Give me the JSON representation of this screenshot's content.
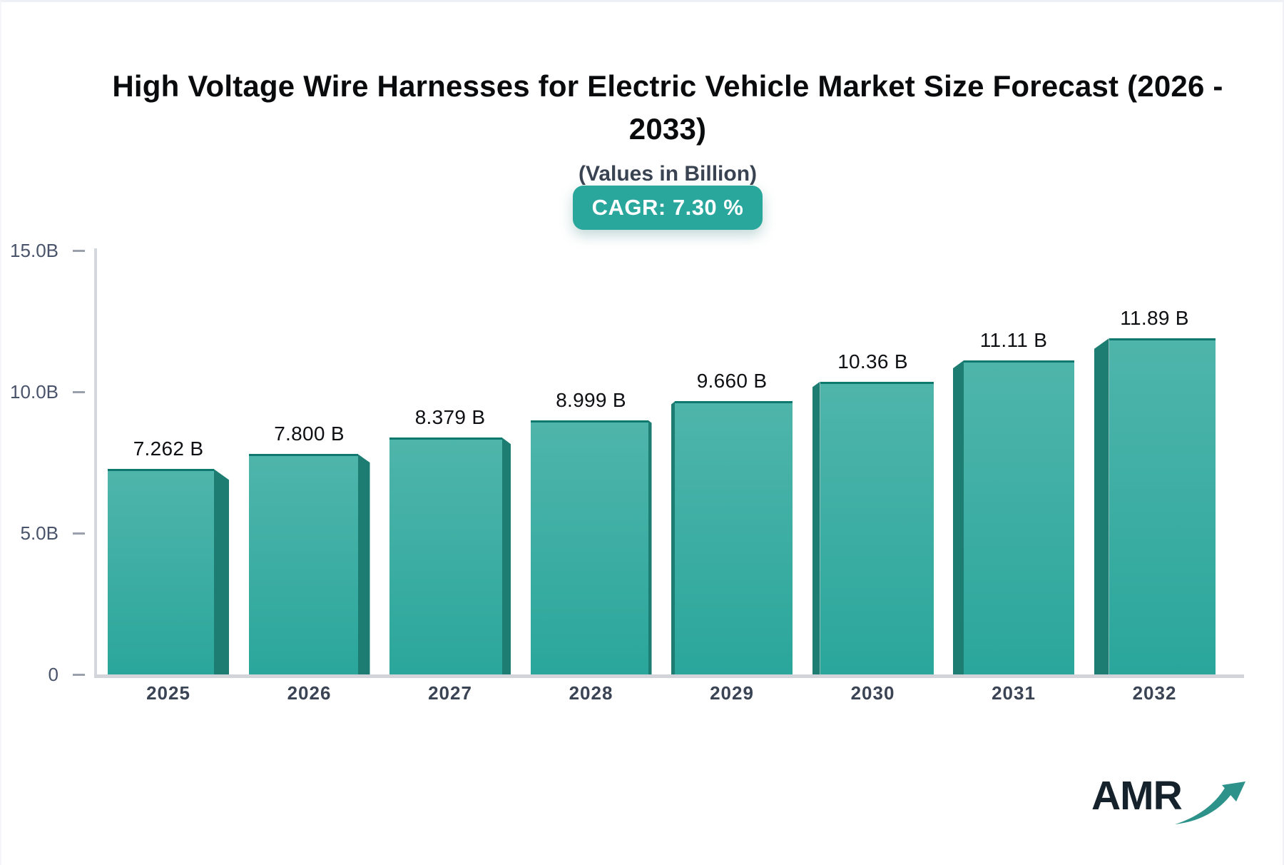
{
  "header": {
    "title_line1": "High Voltage Wire Harnesses for Electric Vehicle Market Size Forecast (2026 -",
    "title_line2": "2033)",
    "subtitle": "(Values in Billion)",
    "cagr_badge": "CAGR: 7.30 %"
  },
  "chart_data": {
    "type": "bar",
    "title": "High Voltage Wire Harnesses for Electric Vehicle Market Size Forecast (2026 - 2033)",
    "subtitle": "(Values in Billion)",
    "cagr": "7.30 %",
    "categories": [
      "2025",
      "2026",
      "2027",
      "2028",
      "2029",
      "2030",
      "2031",
      "2032"
    ],
    "values": [
      7.262,
      7.8,
      8.379,
      8.999,
      9.66,
      10.36,
      11.11,
      11.89
    ],
    "value_labels": [
      "7.262 B",
      "7.800 B",
      "8.379 B",
      "8.999 B",
      "9.660 B",
      "10.36 B",
      "11.11 B",
      "11.89 B"
    ],
    "xlabel": "",
    "ylabel": "",
    "ylim": [
      0,
      15
    ],
    "yticks": [
      {
        "value": 15,
        "label": "15.0B"
      },
      {
        "value": 10,
        "label": "10.0B"
      },
      {
        "value": 5,
        "label": "5.0B"
      },
      {
        "value": 0,
        "label": "0"
      }
    ],
    "grid": "off",
    "legend": "none",
    "colors": {
      "bar_face_top": "#4fb5ab",
      "bar_face_bottom": "#2aa69b",
      "bar_side": "#1d7d73",
      "bar_top_edge": "#0f796f",
      "badge": "#2aa79c",
      "axis_line": "#d2d4da",
      "tick_dash": "#9aa1ad"
    }
  },
  "logo": {
    "text": "AMR",
    "arrow_color": "#2d9289"
  }
}
